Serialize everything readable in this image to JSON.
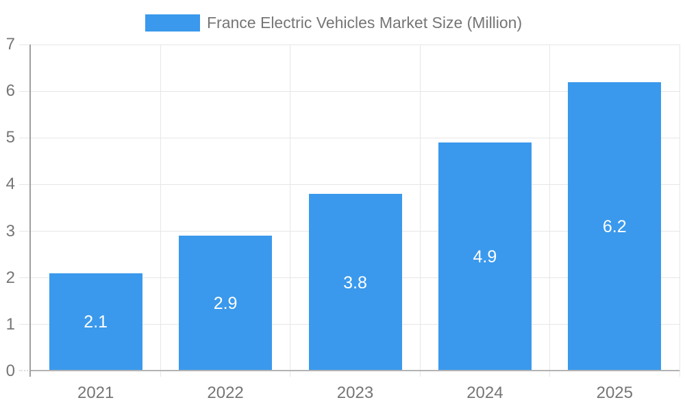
{
  "legend": {
    "label": "France Electric Vehicles Market Size (Million)"
  },
  "chart_data": {
    "type": "bar",
    "title": "France Electric Vehicles Market Size (Million)",
    "categories": [
      "2021",
      "2022",
      "2023",
      "2024",
      "2025"
    ],
    "values": [
      2.1,
      2.9,
      3.8,
      4.9,
      6.2
    ],
    "bar_labels": [
      "2.1",
      "2.9",
      "3.8",
      "4.9",
      "6.2"
    ],
    "xlabel": "",
    "ylabel": "",
    "ylim": [
      0,
      7
    ],
    "yticks": [
      0,
      1,
      2,
      3,
      4,
      5,
      6,
      7
    ],
    "grid": true,
    "legend_position": "top",
    "colors": {
      "bar": "#3A99EC",
      "bar_label_text": "#FFFFFF",
      "axis_text": "#757575",
      "gridline": "#E6E6E6",
      "axis_line": "#9E9E9E",
      "baseline": "#B3B3B3"
    }
  }
}
